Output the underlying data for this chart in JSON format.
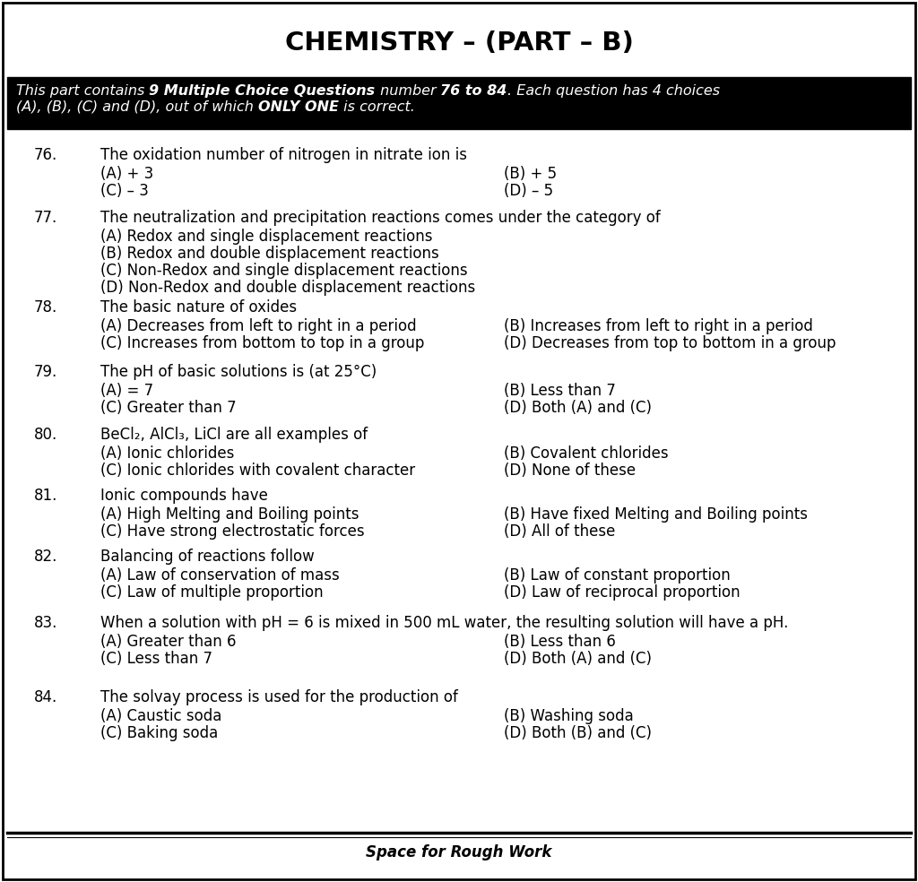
{
  "title": "CHEMISTRY – (PART – B)",
  "footer_text": "Space for Rough Work",
  "bg_color": "#ffffff",
  "header_bg": "#000000",
  "questions": [
    {
      "num": "76.",
      "text": "The oxidation number of nitrogen in nitrate ion is",
      "options_2col": true,
      "options": [
        "(A) + 3",
        "(B) + 5",
        "(C) – 3",
        "(D) – 5"
      ]
    },
    {
      "num": "77.",
      "text": "The neutralization and precipitation reactions comes under the category of",
      "options_2col": false,
      "options": [
        "(A) Redox and single displacement reactions",
        "(B) Redox and double displacement reactions",
        "(C) Non-Redox and single displacement reactions",
        "(D) Non-Redox and double displacement reactions"
      ]
    },
    {
      "num": "78.",
      "text": "The basic nature of oxides",
      "options_2col": true,
      "options": [
        "(A) Decreases from left to right in a period",
        "(B) Increases from left to right in a period",
        "(C) Increases from bottom to top in a group",
        "(D) Decreases from top to bottom in a group"
      ]
    },
    {
      "num": "79.",
      "text": "The pH of basic solutions is (at 25°C)",
      "options_2col": true,
      "options": [
        "(A) = 7",
        "(B) Less than 7",
        "(C) Greater than 7",
        "(D) Both (A) and (C)"
      ]
    },
    {
      "num": "80.",
      "text": "BeCl₂, AlCl₃, LiCl are all examples of",
      "options_2col": true,
      "options": [
        "(A) Ionic chlorides",
        "(B) Covalent chlorides",
        "(C) Ionic chlorides with covalent character",
        "(D) None of these"
      ]
    },
    {
      "num": "81.",
      "text": "Ionic compounds have",
      "options_2col": true,
      "options": [
        "(A) High Melting and Boiling points",
        "(B) Have fixed Melting and Boiling points",
        "(C) Have strong electrostatic forces",
        "(D) All of these"
      ]
    },
    {
      "num": "82.",
      "text": "Balancing of reactions follow",
      "options_2col": true,
      "options": [
        "(A) Law of conservation of mass",
        "(B) Law of constant proportion",
        "(C) Law of multiple proportion",
        "(D) Law of reciprocal proportion"
      ]
    },
    {
      "num": "83.",
      "text": "When a solution with pH = 6 is mixed in 500 mL water, the resulting solution will have a pH.",
      "options_2col": true,
      "options": [
        "(A) Greater than 6",
        "(B) Less than 6",
        "(C) Less than 7",
        "(D) Both (A) and (C)"
      ]
    },
    {
      "num": "84.",
      "text": "The solvay process is used for the production of",
      "options_2col": true,
      "options": [
        "(A) Caustic soda",
        "(B) Washing soda",
        "(C) Baking soda",
        "(D) Both (B) and (C)"
      ]
    }
  ]
}
